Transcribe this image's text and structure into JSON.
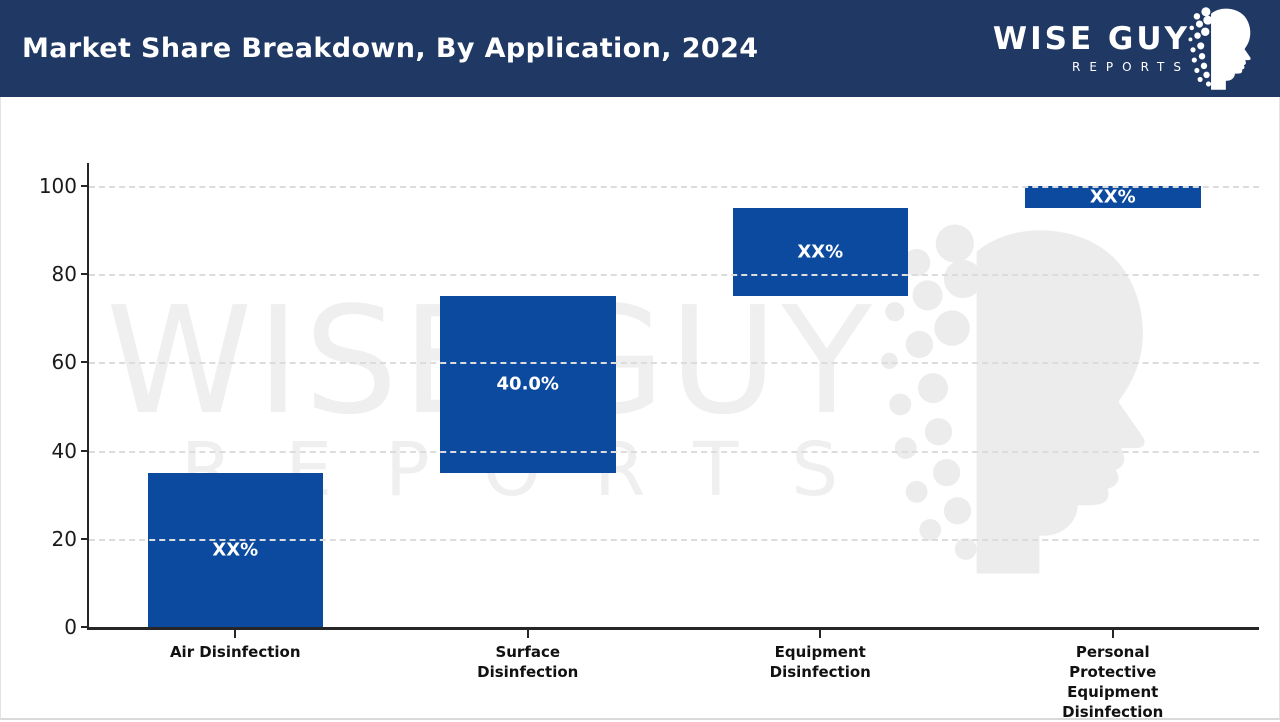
{
  "header": {
    "title": "Market Share Breakdown, By Application, 2024",
    "bg_color": "#1f3864",
    "logo_title": "WISE GUY",
    "logo_subtitle": "REPORTS"
  },
  "watermark": {
    "line1": "WISE GUY",
    "line2": "REPORTS"
  },
  "chart_data": {
    "type": "bar",
    "subtype": "waterfall-breakdown",
    "title": "Market Share Breakdown, By Application, 2024",
    "categories": [
      "Air Disinfection",
      "Surface Disinfection",
      "Equipment Disinfection",
      "Personal Protective Equipment Disinfection"
    ],
    "category_lines": [
      [
        "Air Disinfection"
      ],
      [
        "Surface",
        "Disinfection"
      ],
      [
        "Equipment",
        "Disinfection"
      ],
      [
        "Personal",
        "Protective",
        "Equipment",
        "Disinfection"
      ]
    ],
    "values": [
      35,
      40,
      20,
      5
    ],
    "segment_starts": [
      0,
      35,
      75,
      95
    ],
    "segment_ends": [
      35,
      75,
      95,
      100
    ],
    "bar_labels": [
      "XX%",
      "40.0%",
      "XX%",
      "XX%"
    ],
    "ylim": [
      0,
      100
    ],
    "yticks": [
      0,
      20,
      40,
      60,
      80,
      100
    ],
    "xlabel": "",
    "ylabel": "",
    "bar_color": "#0b4a9e",
    "axis_color": "#262626",
    "gridline_color": "#dcdcdc",
    "grid": "horizontal-dashed",
    "legend": "none"
  }
}
